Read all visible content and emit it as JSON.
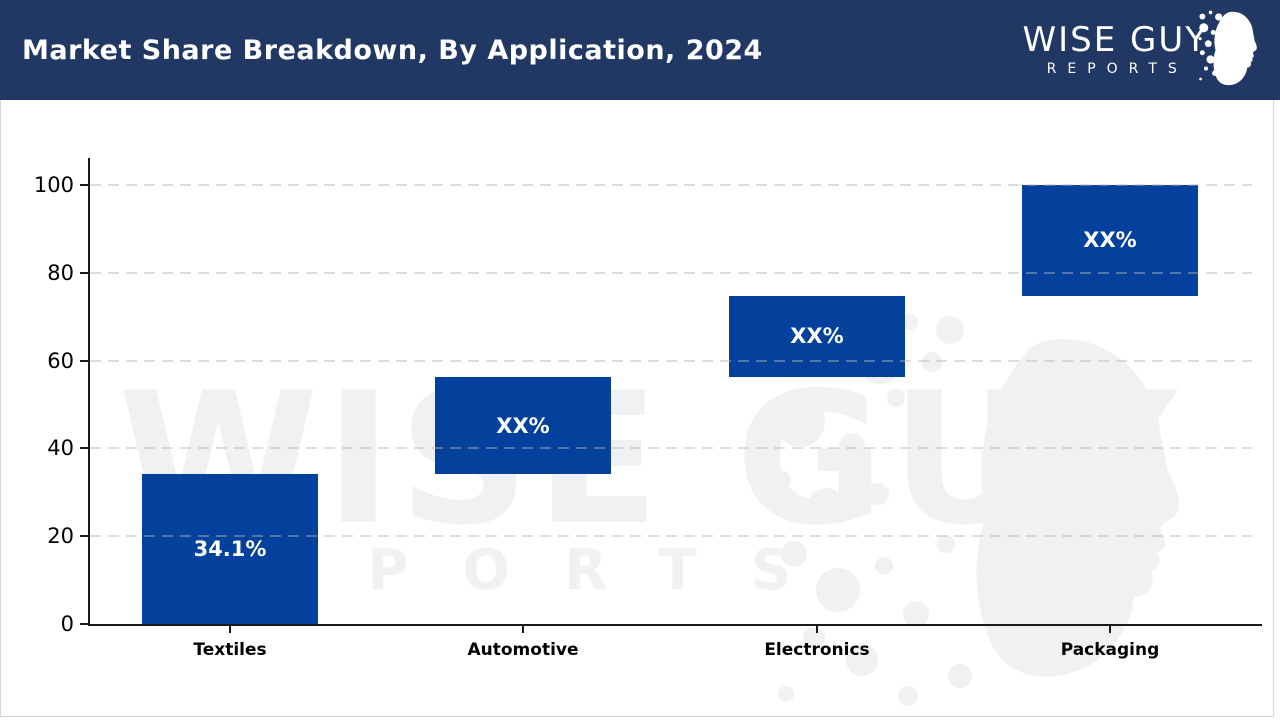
{
  "header": {
    "title": "Market Share Breakdown, By Application, 2024",
    "logo": {
      "line1": "WISE GUY",
      "line2": "REPORTS"
    }
  },
  "watermark": {
    "line1": "WISE GUY",
    "line2": "REPORTS"
  },
  "icons": {
    "logo_face": "wise-guy-head-profile-made-of-dots"
  },
  "colors": {
    "header_bg": "#213764",
    "bar": "#03419c",
    "bar_label": "#ffffff",
    "axis": "#1a1a1a",
    "grid": "#dddddd",
    "watermark": "#f1f1f3",
    "title_text": "#ffffff"
  },
  "chart_data": {
    "type": "bar",
    "subtype": "waterfall-floating-bars",
    "title": "Market Share Breakdown, By Application, 2024",
    "categories": [
      "Textiles",
      "Automotive",
      "Electronics",
      "Packaging"
    ],
    "segments": [
      {
        "category": "Textiles",
        "start": 0,
        "end": 34.1,
        "label": "34.1%"
      },
      {
        "category": "Automotive",
        "start": 34.1,
        "end": 56.2,
        "label": "XX%"
      },
      {
        "category": "Electronics",
        "start": 56.2,
        "end": 74.8,
        "label": "XX%"
      },
      {
        "category": "Packaging",
        "start": 74.8,
        "end": 100,
        "label": "XX%"
      }
    ],
    "xlabel": "",
    "ylabel": "",
    "yticks": [
      0,
      20,
      40,
      60,
      80,
      100
    ],
    "ylim": [
      0,
      106
    ],
    "grid": "horizontal-dashed",
    "legend": false
  }
}
